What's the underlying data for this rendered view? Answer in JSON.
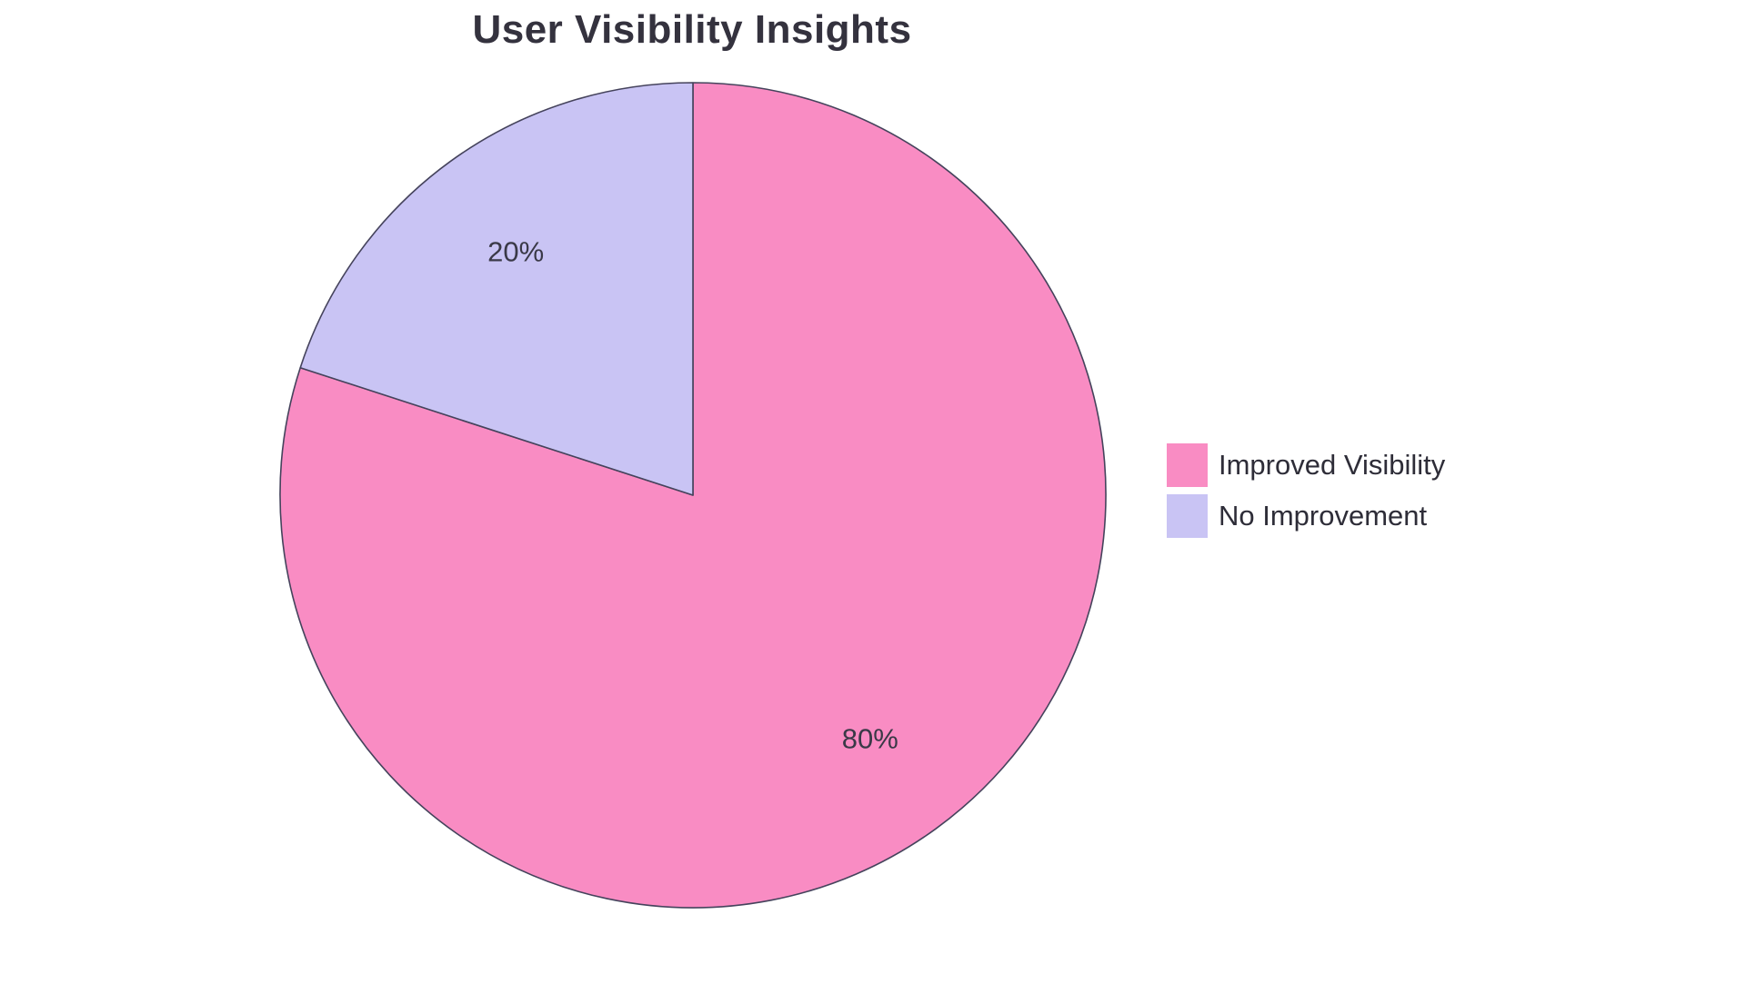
{
  "chart_data": {
    "type": "pie",
    "title": "User Visibility Insights",
    "labels": [
      "Improved Visibility",
      "No Improvement"
    ],
    "values": [
      80,
      20
    ],
    "slice_labels": [
      "80%",
      "20%"
    ],
    "colors": [
      "#F98CC3",
      "#C9C4F4"
    ],
    "stroke_color": "#45435C",
    "background": "#FFFFFF",
    "legend_position": "right",
    "start_angle_deg": 0,
    "direction": "clockwise"
  }
}
